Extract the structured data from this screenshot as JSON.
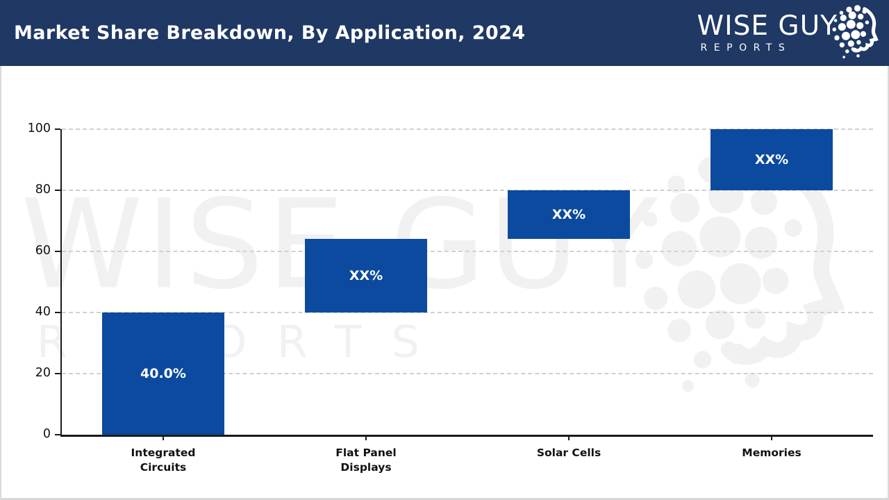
{
  "header": {
    "title": "Market Share Breakdown, By Application, 2024",
    "background_color": "#1f3864",
    "logo": {
      "line1": "WISE GUY",
      "line2": "REPORTS"
    }
  },
  "watermark": {
    "line1": "WISE GUY",
    "line2": "REPORTS"
  },
  "chart_data": {
    "type": "bar",
    "subtype": "waterfall",
    "title": "Market Share Breakdown, By Application, 2024",
    "categories": [
      "Integrated\nCircuits",
      "Flat Panel\nDisplays",
      "Solar Cells",
      "Memories"
    ],
    "segments": [
      {
        "category": "Integrated Circuits",
        "start": 0,
        "end": 40,
        "value": 40,
        "label": "40.0%"
      },
      {
        "category": "Flat Panel Displays",
        "start": 40,
        "end": 64,
        "value": 24,
        "label": "XX%"
      },
      {
        "category": "Solar Cells",
        "start": 64,
        "end": 80,
        "value": 16,
        "label": "XX%"
      },
      {
        "category": "Memories",
        "start": 80,
        "end": 100,
        "value": 20,
        "label": "XX%"
      }
    ],
    "xlabel": "",
    "ylabel": "",
    "ylim": [
      0,
      100
    ],
    "yticks": [
      0,
      20,
      40,
      60,
      80,
      100
    ],
    "grid": "horizontal-dashed",
    "legend": "none",
    "bar_color": "#0b4a9e",
    "bar_label_color": "#ffffff",
    "grid_color": "#d0d0d0",
    "axis_color": "#1a1a1a"
  }
}
